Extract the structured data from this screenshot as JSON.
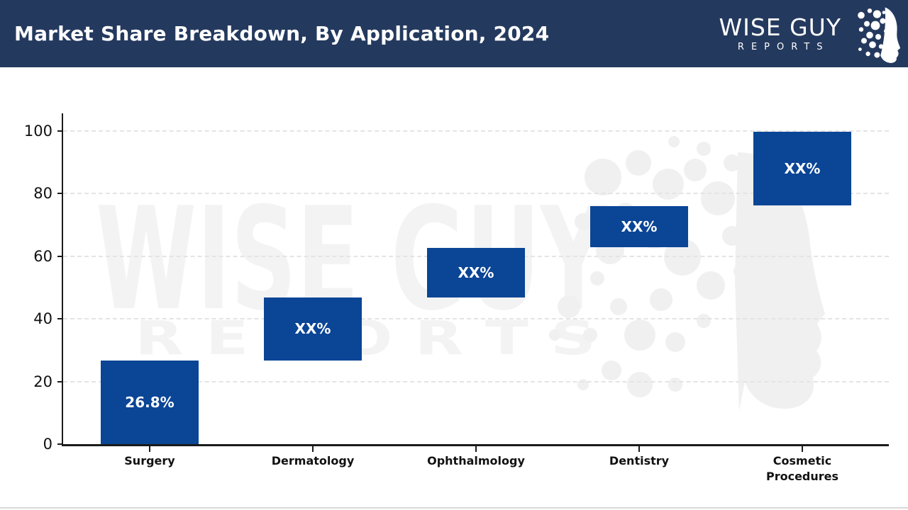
{
  "header": {
    "title": "Market Share Breakdown, By Application, 2024",
    "logo": {
      "line1": "WISE GUY",
      "line2": "REPORTS"
    }
  },
  "watermark": {
    "line1": "WISE GUY",
    "line2": "R E P O R T S"
  },
  "colors": {
    "header_bg": "#24395e",
    "bar": "#0a4596",
    "bar_label": "#ffffff",
    "gridline": "#e4e4e4",
    "axis": "#1a1a1a",
    "watermark": "#f2f2f2"
  },
  "chart_data": {
    "type": "bar",
    "subtype": "waterfall",
    "title": "Market Share Breakdown, By Application, 2024",
    "categories": [
      "Surgery",
      "Dermatology",
      "Ophthalmology",
      "Dentistry",
      "Cosmetic Procedures"
    ],
    "segments": [
      {
        "category": "Surgery",
        "start": 0,
        "end": 26.8,
        "label": "26.8%"
      },
      {
        "category": "Dermatology",
        "start": 26.8,
        "end": 46.8,
        "label": "XX%"
      },
      {
        "category": "Ophthalmology",
        "start": 46.9,
        "end": 62.7,
        "label": "XX%"
      },
      {
        "category": "Dentistry",
        "start": 62.9,
        "end": 76.0,
        "label": "XX%"
      },
      {
        "category": "Cosmetic Procedures",
        "start": 76.2,
        "end": 99.8,
        "label": "XX%"
      }
    ],
    "values": [
      26.8,
      20.0,
      15.8,
      13.1,
      23.6
    ],
    "xlabel": "",
    "ylabel": "",
    "ylim": [
      0,
      100
    ],
    "yticks": [
      "0",
      "20",
      "40",
      "60",
      "80",
      "100"
    ],
    "grid": "horizontal-dashed",
    "legend": "none",
    "bar_color": "#0a4596"
  }
}
